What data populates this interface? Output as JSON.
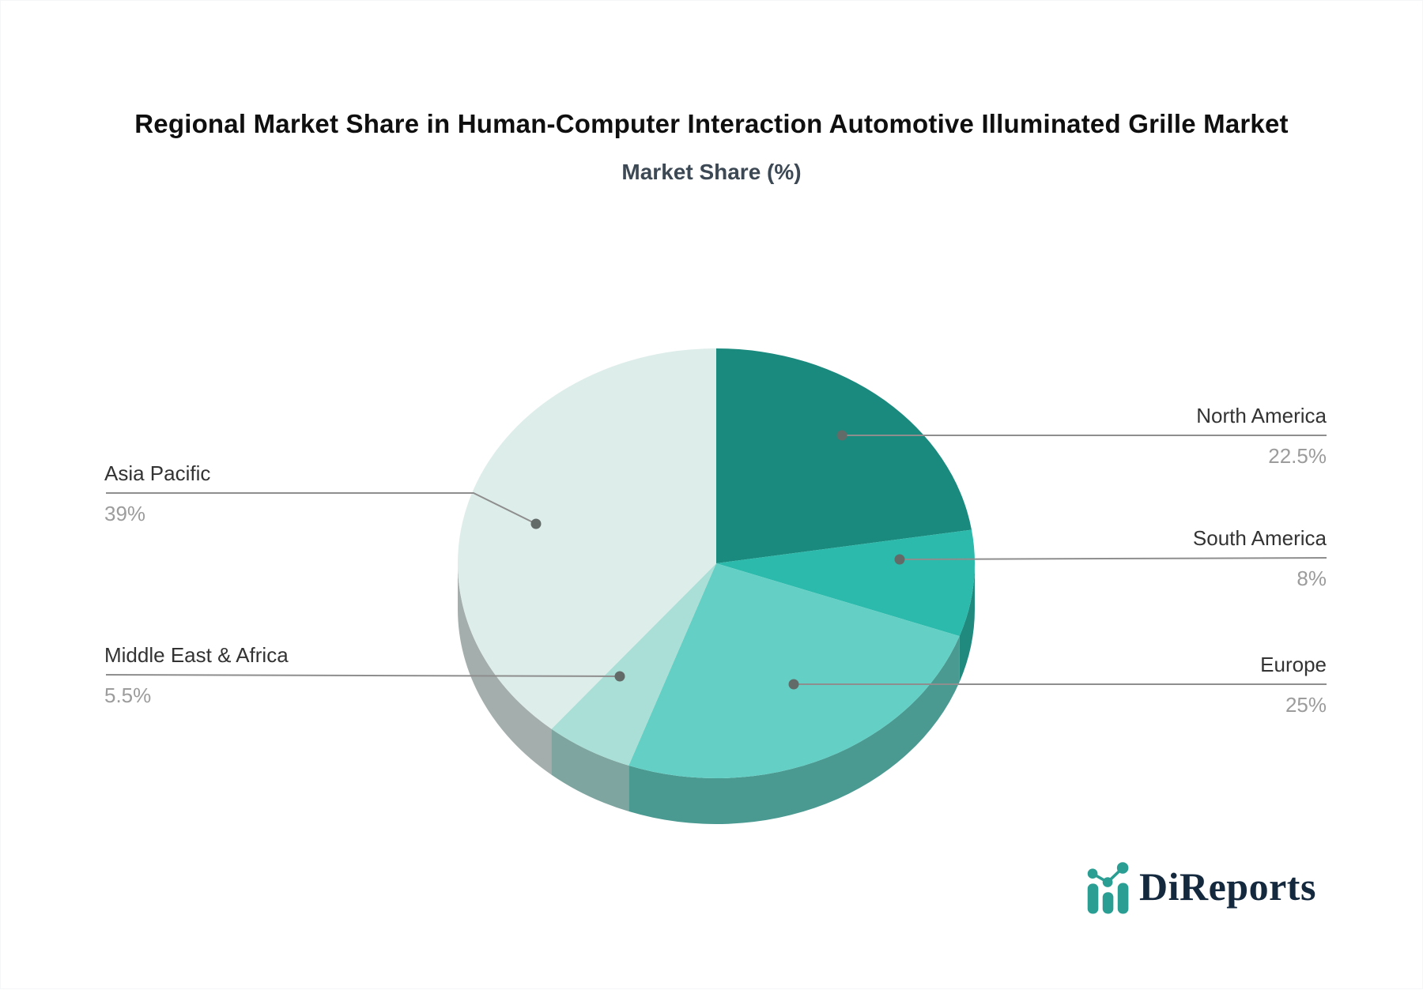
{
  "chart_data": {
    "type": "pie",
    "style": "3d",
    "title": "Regional Market Share in Human-Computer Interaction Automotive Illuminated Grille Market",
    "subtitle": "Market Share (%)",
    "unit": "%",
    "start_angle_deg": 0,
    "direction": "clockwise",
    "legend_position": "none",
    "slices": [
      {
        "label": "North America",
        "value": 22.5,
        "display": "22.5%",
        "color": "#1a8a7e"
      },
      {
        "label": "South America",
        "value": 8,
        "display": "8%",
        "color": "#2bbaab"
      },
      {
        "label": "Europe",
        "value": 25,
        "display": "25%",
        "color": "#64d0c5"
      },
      {
        "label": "Middle East & Africa",
        "value": 5.5,
        "display": "5.5%",
        "color": "#aadfd7"
      },
      {
        "label": "Asia Pacific",
        "value": 39,
        "display": "39%",
        "color": "#ddedea"
      }
    ],
    "label_name_color": "#333333",
    "label_value_color": "#9c9c9c",
    "connector_color": "#8e8e8e",
    "connector_dot_color": "#636b69"
  },
  "logo": {
    "text": "DiReports",
    "icon": "mini-bar-line-chart-icon",
    "icon_color": "#2a9e92",
    "text_color": "#15293e"
  }
}
